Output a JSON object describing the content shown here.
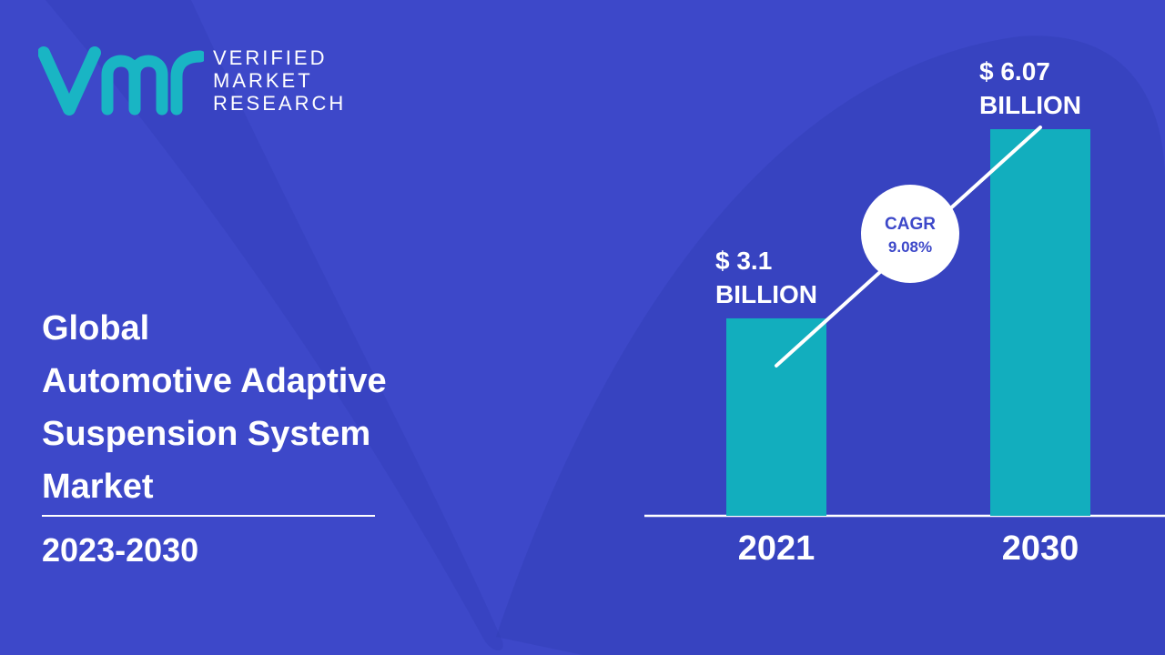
{
  "brand": {
    "line1": "VERIFIED",
    "line2": "MARKET",
    "line3": "RESEARCH"
  },
  "title": {
    "line1": "Global",
    "line2": "Automotive Adaptive",
    "line3": "Suspension System",
    "line4": "Market"
  },
  "period": "2023-2030",
  "colors": {
    "background": "#3d48c9",
    "background_shape": "#3340b8",
    "bar": "#12aebe",
    "text": "#ffffff",
    "cagr_text": "#3d48c9"
  },
  "chart_data": {
    "type": "bar",
    "categories": [
      "2021",
      "2030"
    ],
    "values": [
      3.1,
      6.07
    ],
    "value_labels": [
      [
        "$ 3.1",
        "BILLION"
      ],
      [
        "$ 6.07",
        "BILLION"
      ]
    ],
    "unit": "USD Billion",
    "cagr": {
      "label": "CAGR",
      "value": "9.08%"
    },
    "ylim": [
      0,
      6.07
    ],
    "grid": false,
    "legend": "none"
  }
}
